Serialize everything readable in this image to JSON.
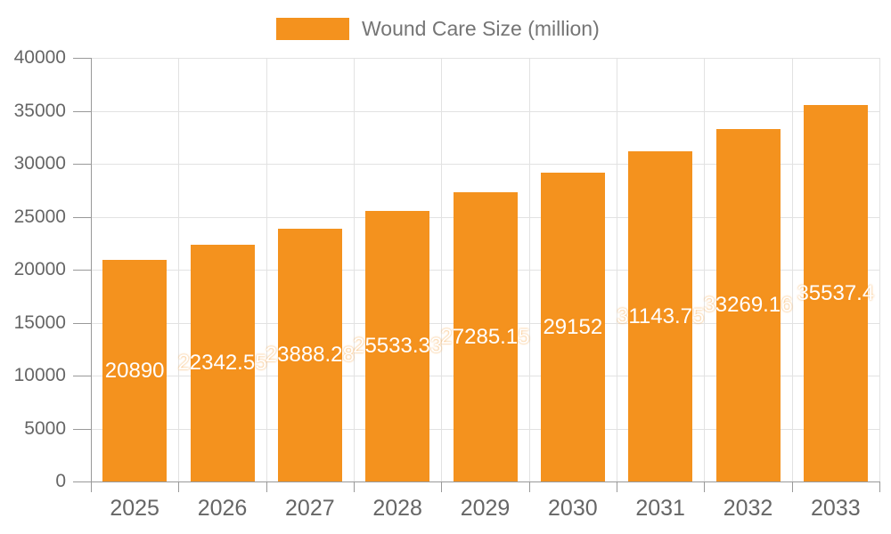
{
  "legend": {
    "label": "Wound Care Size (million)"
  },
  "chart_data": {
    "type": "bar",
    "title": "Wound Care Size (million)",
    "categories": [
      "2025",
      "2026",
      "2027",
      "2028",
      "2029",
      "2030",
      "2031",
      "2032",
      "2033"
    ],
    "series": [
      {
        "name": "Wound Care Size (million)",
        "values": [
          20890,
          22342.55,
          23888.28,
          25533.33,
          27285.15,
          29152,
          31143.75,
          33269.16,
          35537.4
        ]
      }
    ],
    "bar_labels": [
      "20890",
      "22342.55",
      "23888.28",
      "25533.33",
      "27285.15",
      "29152",
      "31143.75",
      "33269.16",
      "35537.4"
    ],
    "xlabel": "",
    "ylabel": "",
    "ylim": [
      0,
      40000
    ],
    "y_ticks": [
      0,
      5000,
      10000,
      15000,
      20000,
      25000,
      30000,
      35000,
      40000
    ],
    "grid": true,
    "legend_position": "top-center",
    "colors": {
      "bar": "#F4921E",
      "bar_label": "#FFFFFF",
      "axis_line": "#999999",
      "grid_line": "#E2E2E2",
      "axis_text": "#666666",
      "legend_text": "#757575"
    }
  }
}
